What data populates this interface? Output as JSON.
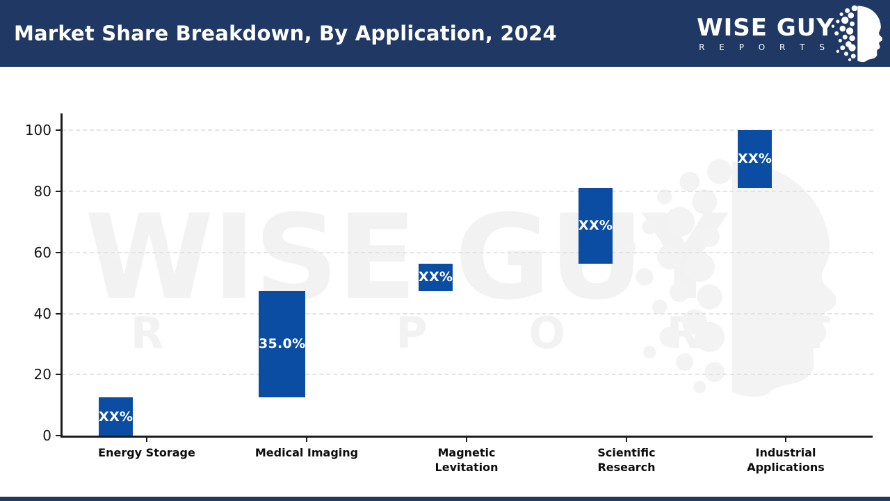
{
  "header": {
    "title": "Market Share Breakdown, By Application, 2024",
    "logo": {
      "brand_line1": "WISE GUY",
      "brand_line2": "R E P O R T S"
    }
  },
  "watermark": {
    "line1": "WISE GUY",
    "line2": "R E P O R T S"
  },
  "chart_data": {
    "type": "bar",
    "variant": "waterfall",
    "title": "Market Share Breakdown, By Application, 2024",
    "categories": [
      "Energy Storage",
      "Medical Imaging",
      "Magnetic Levitation",
      "Scientific Research",
      "Industrial Applications"
    ],
    "category_lines": [
      [
        "Energy Storage"
      ],
      [
        "Medical Imaging"
      ],
      [
        "Magnetic",
        "Levitation"
      ],
      [
        "Scientific",
        "Research"
      ],
      [
        "Industrial",
        "Applications"
      ]
    ],
    "segments": [
      {
        "category": "Energy Storage",
        "start": 0,
        "end": 12.5,
        "value_label": "XX%"
      },
      {
        "category": "Medical Imaging",
        "start": 12.5,
        "end": 47.5,
        "value_label": "35.0%",
        "value": 35.0
      },
      {
        "category": "Magnetic Levitation",
        "start": 47.5,
        "end": 56.25,
        "value_label": "XX%"
      },
      {
        "category": "Scientific Research",
        "start": 56.25,
        "end": 81.25,
        "value_label": "XX%"
      },
      {
        "category": "Industrial Applications",
        "start": 81.25,
        "end": 100,
        "value_label": "XX%"
      }
    ],
    "yticks": [
      0,
      20,
      40,
      60,
      80,
      100
    ],
    "ylim": [
      0,
      105.5
    ],
    "xlabel": "",
    "ylabel": "",
    "grid": "horizontal-dashed",
    "legend": "none",
    "bar_color": "#0b4da2",
    "bar_label_color": "#ffffff"
  },
  "colors": {
    "header_bg": "#1f3864",
    "footer_bg": "#1f3864",
    "page_bg": "#ffffff",
    "axis": "#1c1c1c",
    "grid": "#e4e4e4",
    "watermark": "#f2f2f2",
    "title_text": "#ffffff",
    "tick_text": "#141414"
  }
}
